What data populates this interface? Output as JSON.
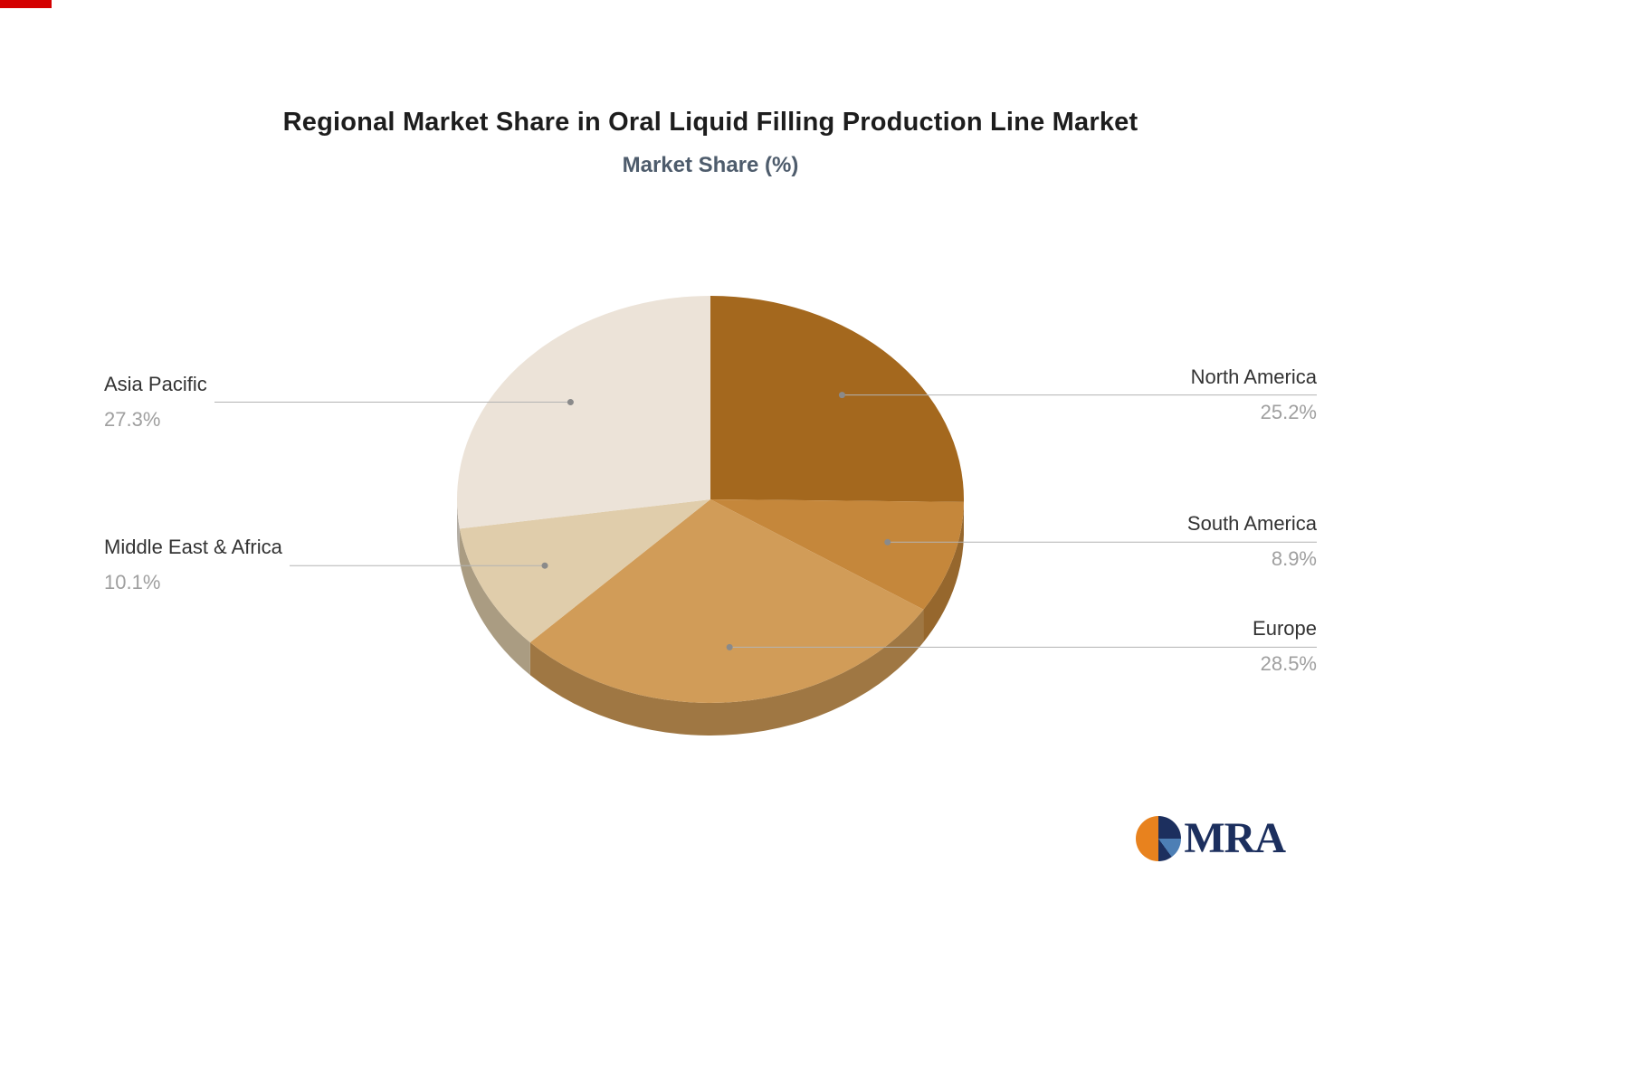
{
  "header": {
    "title": "Regional Market Share in Oral Liquid Filling Production Line Market",
    "subtitle": "Market Share (%)"
  },
  "chart_data": {
    "type": "pie",
    "style": "3d",
    "title": "Regional Market Share in Oral Liquid Filling Production Line Market",
    "subtitle": "Market Share (%)",
    "unit": "%",
    "start_angle_deg": -90,
    "direction": "clockwise",
    "legend": "none",
    "labels": "callout",
    "series": [
      {
        "label": "North America",
        "value": 25.2,
        "display": "25.2%",
        "color": "#a4681e"
      },
      {
        "label": "South America",
        "value": 8.9,
        "display": "8.9%",
        "color": "#c5873b"
      },
      {
        "label": "Europe",
        "value": 28.5,
        "display": "28.5%",
        "color": "#d19c58"
      },
      {
        "label": "Middle East & Africa",
        "value": 10.1,
        "display": "10.1%",
        "color": "#e0cdab"
      },
      {
        "label": "Asia Pacific",
        "value": 27.3,
        "display": "27.3%",
        "color": "#ece3d8"
      }
    ]
  },
  "logo": {
    "text": "MRA",
    "colors": {
      "orange": "#e8821e",
      "navy": "#1c2f5e",
      "blue": "#4d7fb5"
    }
  }
}
